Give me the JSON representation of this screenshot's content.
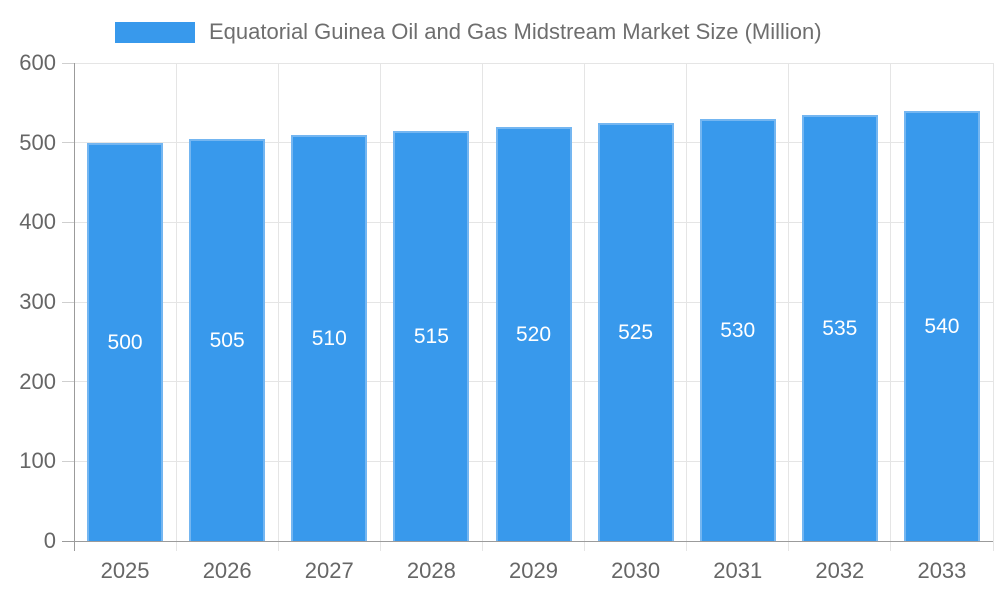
{
  "legend": {
    "label": "Equatorial Guinea Oil and Gas Midstream Market Size (Million)",
    "swatch_color": "#3899EC"
  },
  "chart_data": {
    "type": "bar",
    "title": "Equatorial Guinea Oil and Gas Midstream Market Size (Million)",
    "categories": [
      "2025",
      "2026",
      "2027",
      "2028",
      "2029",
      "2030",
      "2031",
      "2032",
      "2033"
    ],
    "values": [
      500,
      505,
      510,
      515,
      520,
      525,
      530,
      535,
      540
    ],
    "bar_labels": [
      "500",
      "505",
      "510",
      "515",
      "520",
      "525",
      "530",
      "535",
      "540"
    ],
    "xlabel": "",
    "ylabel": "",
    "ylim": [
      0,
      600
    ],
    "ytick_step": 100,
    "ytick_labels": [
      "0",
      "100",
      "200",
      "300",
      "400",
      "500",
      "600"
    ],
    "grid": true,
    "legend_position": "top",
    "colors": {
      "bar_fill": "#3899EC",
      "bar_border": "#74B6F1",
      "grid_line": "#E5E5E5",
      "axis_line": "#9B9B9B",
      "tick_mark": "#CFCFCF",
      "tick_text": "#666666",
      "bar_label_text": "#FFFFFF",
      "legend_text": "#6E6E6E"
    }
  }
}
